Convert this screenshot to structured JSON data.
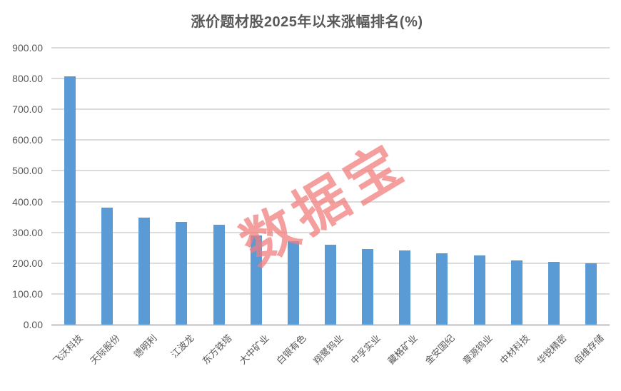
{
  "title": "涨价题材股2025年以来涨幅排名(%)",
  "watermark": "数据宝",
  "colors": {
    "bar": "#5B9BD5",
    "title_text": "#595959",
    "axis_label": "#595959",
    "gridline": "#DCDCDC",
    "axis_line": "#D4D4D4",
    "watermark": "#F07E7E"
  },
  "chart_data": {
    "type": "bar",
    "title": "涨价题材股2025年以来涨幅排名(%)",
    "categories": [
      "飞沃科技",
      "天际股份",
      "德明利",
      "江波龙",
      "东方铁塔",
      "大中矿业",
      "白银有色",
      "翔鹭钨业",
      "中孚实业",
      "藏格矿业",
      "金安国纪",
      "章源钨业",
      "中材科技",
      "华锐精密",
      "佰维存储"
    ],
    "values": [
      808,
      381,
      349,
      334,
      325,
      291,
      272,
      259,
      247,
      242,
      233,
      226,
      209,
      203,
      200
    ],
    "xlabel": "",
    "ylabel": "",
    "ylim": [
      0,
      900
    ],
    "ytick_step": 100,
    "ytick_decimals": 2,
    "grid": true,
    "legend": false,
    "bar_color": "#5B9BD5"
  }
}
